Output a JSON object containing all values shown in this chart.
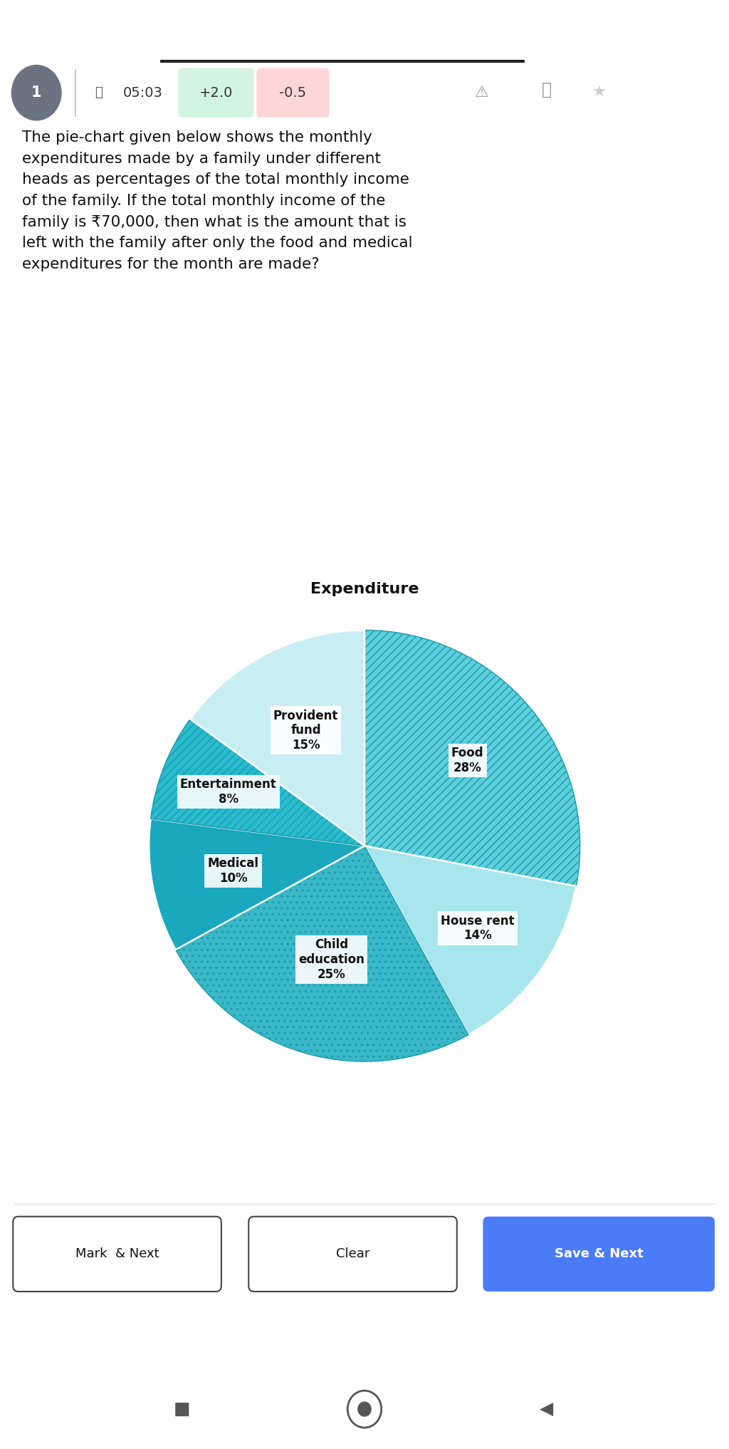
{
  "title": "Expenditure",
  "slices": [
    {
      "label": "Food",
      "pct": 28,
      "color": "#5ecfdc",
      "hatch": "///",
      "label_r": 0.62
    },
    {
      "label": "House rent",
      "pct": 14,
      "color": "#a8e6ed",
      "hatch": "",
      "label_r": 0.65
    },
    {
      "label": "Child\neducation",
      "pct": 25,
      "color": "#3bb8c8",
      "hatch": "..",
      "label_r": 0.55
    },
    {
      "label": "Medical",
      "pct": 10,
      "color": "#1aa8bf",
      "hatch": "",
      "label_r": 0.62
    },
    {
      "label": "Entertainment",
      "pct": 8,
      "color": "#2abcce",
      "hatch": "///",
      "label_r": 0.68
    },
    {
      "label": "Provident\nfund",
      "pct": 15,
      "color": "#c8eef4",
      "hatch": "",
      "label_r": 0.6
    }
  ],
  "question_text": "The pie-chart given below shows the monthly\nexpenditures made by a family under different\nheads as percentages of the total monthly income\nof the family. If the total monthly income of the\nfamily is ₹70,000, then what is the amount that is\nleft with the family after only the food and medical\nexpenditures for the month are made?",
  "header_num": "1",
  "header_time": "05:03",
  "header_plus": "+2.0",
  "header_minus": "-0.5",
  "bg_color": "#ffffff",
  "label_fontsize": 12,
  "title_fontsize": 16,
  "question_fontsize": 15.5
}
